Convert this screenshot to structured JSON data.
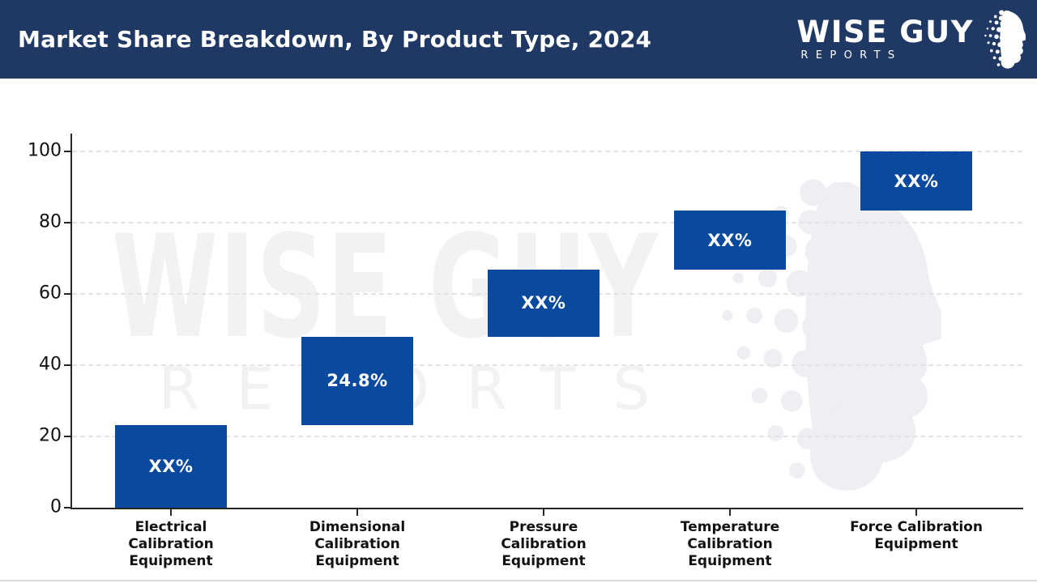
{
  "header": {
    "title": "Market Share Breakdown, By Product Type, 2024"
  },
  "brand": {
    "name": "WISE GUY",
    "subtitle": "REPORTS"
  },
  "watermark": {
    "line1": "WISE GUY",
    "line2": "REPORTS"
  },
  "colors": {
    "header_bg": "#1f3864",
    "title_text": "#ffffff",
    "logo_text": "#ffffff",
    "bar": "#09499e",
    "bar_label": "#ffffff",
    "grid": "#e3e3e3",
    "axis": "#262626",
    "text": "#111111",
    "watermark_text": "#f1f2f4",
    "watermark_face": "#edeff2"
  },
  "chart_data": {
    "type": "bar",
    "variant": "waterfall-segmented",
    "title": "Market Share Breakdown, By Product Type, 2024",
    "xlabel": "",
    "ylabel": "",
    "ylim": [
      0,
      100
    ],
    "yticks": [
      0,
      20,
      40,
      60,
      80,
      100
    ],
    "grid": "horizontal-dashed",
    "legend": "none",
    "categories": [
      "Electrical Calibration Equipment",
      "Dimensional Calibration Equipment",
      "Pressure Calibration Equipment",
      "Temperature Calibration Equipment",
      "Force Calibration Equipment"
    ],
    "category_lines": [
      [
        "Electrical",
        "Calibration",
        "Equipment"
      ],
      [
        "Dimensional",
        "Calibration",
        "Equipment"
      ],
      [
        "Pressure",
        "Calibration",
        "Equipment"
      ],
      [
        "Temperature",
        "Calibration",
        "Equipment"
      ],
      [
        "Force Calibration",
        "Equipment"
      ]
    ],
    "segments": [
      {
        "label": "XX%",
        "start": 0,
        "end": 23.2,
        "share_estimate": 23.2
      },
      {
        "label": "24.8%",
        "start": 23.2,
        "end": 48.0,
        "share_estimate": 24.8
      },
      {
        "label": "XX%",
        "start": 48.0,
        "end": 66.8,
        "share_estimate": 18.8
      },
      {
        "label": "XX%",
        "start": 66.8,
        "end": 83.4,
        "share_estimate": 16.6
      },
      {
        "label": "XX%",
        "start": 83.4,
        "end": 100.0,
        "share_estimate": 16.6
      }
    ]
  }
}
